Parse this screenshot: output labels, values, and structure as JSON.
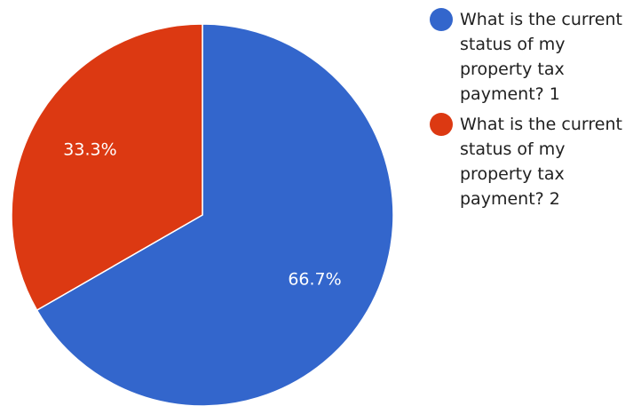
{
  "chart_data": {
    "type": "pie",
    "slices": [
      {
        "name": "What is the current status of my property tax payment? 1",
        "value": 66.7,
        "label": "66.7%",
        "color": "#3366cc"
      },
      {
        "name": "What is the current status of my property tax payment? 2",
        "value": 33.3,
        "label": "33.3%",
        "color": "#dc3912"
      }
    ],
    "start_angle_deg": 0,
    "direction": "clockwise",
    "legend_position": "right"
  }
}
